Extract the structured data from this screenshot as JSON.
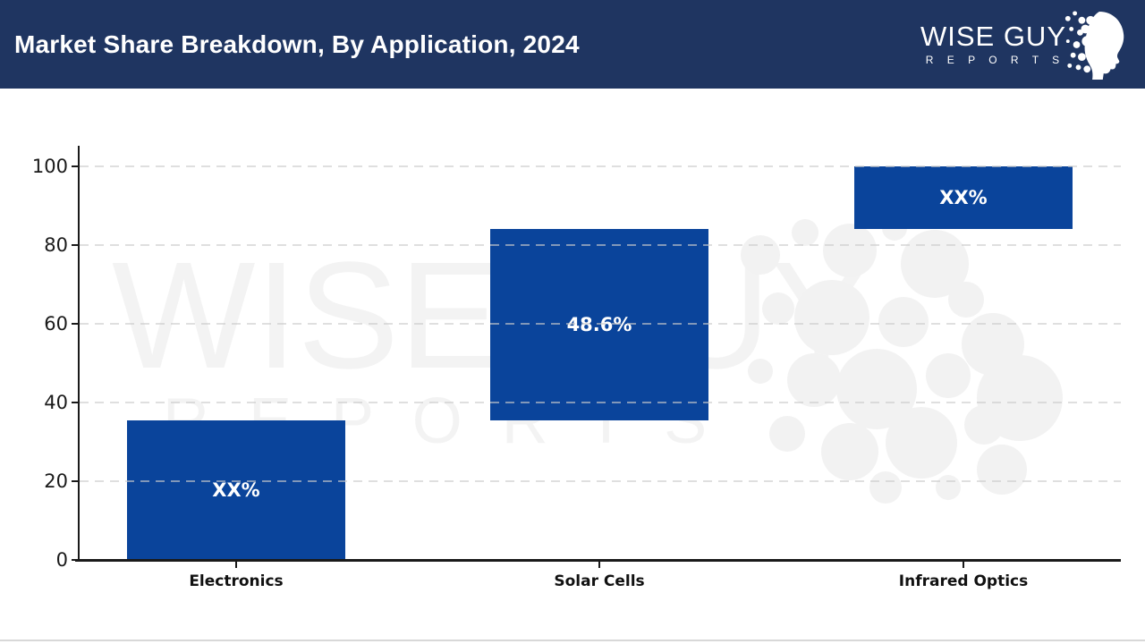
{
  "header": {
    "title": "Market Share Breakdown, By Application, 2024",
    "logo": {
      "name": "WISE GUY",
      "sub": "R E P O R T S"
    }
  },
  "watermark": {
    "line1": "WISE GUY",
    "line2": "R E P O R T S"
  },
  "colors": {
    "header_bg": "#1f3561",
    "bar": "#0a449b",
    "grid": "#d9d9d9",
    "axis": "#1a1a1a",
    "bar_label_text": "#ffffff",
    "watermark": "#f3f3f3"
  },
  "chart_data": {
    "type": "bar",
    "subtype": "floating-waterfall",
    "title": "Market Share Breakdown, By Application, 2024",
    "categories": [
      "Electronics",
      "Solar Cells",
      "Infrared Optics"
    ],
    "segments": [
      {
        "category": "Electronics",
        "start": 0,
        "end": 35.4,
        "value_label": "XX%"
      },
      {
        "category": "Solar Cells",
        "start": 35.4,
        "end": 84.0,
        "value_label": "48.6%"
      },
      {
        "category": "Infrared Optics",
        "start": 84.0,
        "end": 100.0,
        "value_label": "XX%"
      }
    ],
    "xlabel": "",
    "ylabel": "",
    "yticks": [
      0,
      20,
      40,
      60,
      80,
      100
    ],
    "ylim": [
      0,
      105
    ],
    "grid": {
      "axis": "y",
      "style": "dashed",
      "color": "#d9d9d9",
      "drawn_over_bars": true
    },
    "legend": "none",
    "bar_color": "#0a449b"
  }
}
